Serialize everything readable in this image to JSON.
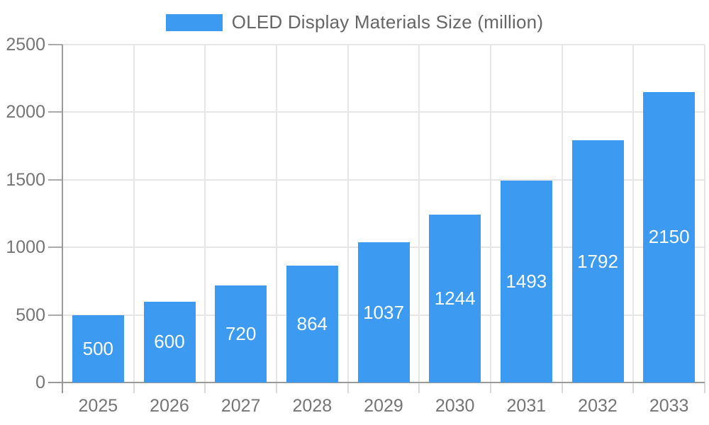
{
  "legend": {
    "label": "OLED Display Materials Size (million)",
    "swatch_color": "#3c9af0"
  },
  "chart_data": {
    "type": "bar",
    "title": "OLED Display Materials Size (million)",
    "categories": [
      "2025",
      "2026",
      "2027",
      "2028",
      "2029",
      "2030",
      "2031",
      "2032",
      "2033"
    ],
    "series": [
      {
        "name": "OLED Display Materials Size (million)",
        "values": [
          500,
          600,
          720,
          864,
          1037,
          1244,
          1493,
          1792,
          2150
        ]
      }
    ],
    "value_labels": [
      "500",
      "600",
      "720",
      "864",
      "1037",
      "1244",
      "1493",
      "1792",
      "2150"
    ],
    "xlabel": "",
    "ylabel": "",
    "ylim": [
      0,
      2500
    ],
    "yticks": [
      0,
      500,
      1000,
      1500,
      2000,
      2500
    ],
    "ytick_labels": [
      "0",
      "500",
      "1000",
      "1500",
      "2000",
      "2500"
    ],
    "grid": true,
    "legend_position": "top",
    "colors": {
      "bar": "#3c9af0",
      "value_label": "#ffffff",
      "gridline": "#e6e6e6",
      "axis_line": "#999999",
      "tick_label": "#757575",
      "legend_text": "#666666",
      "background": "#ffffff"
    }
  }
}
